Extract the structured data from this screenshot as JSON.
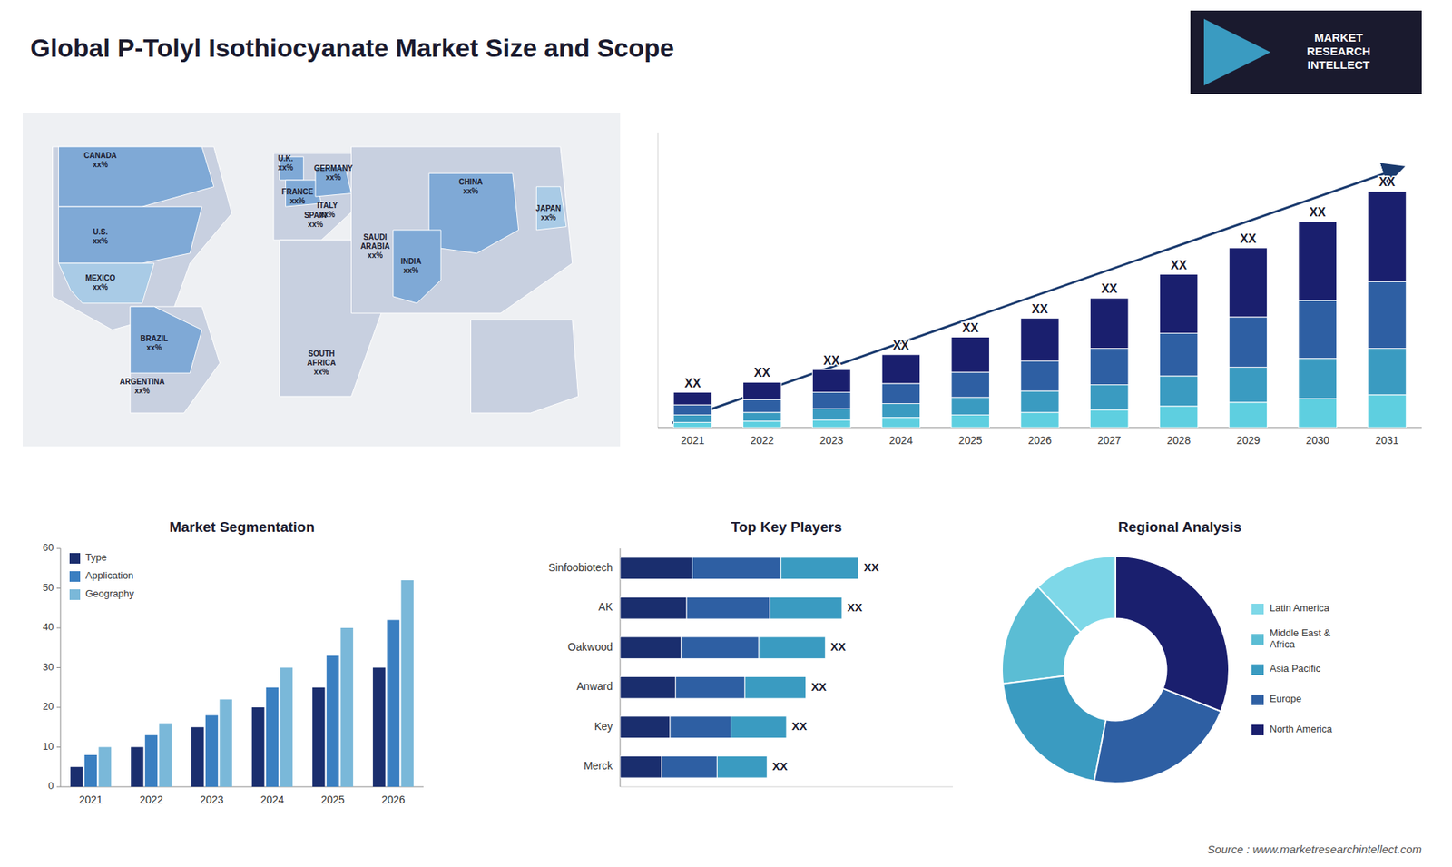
{
  "title": "Global P-Tolyl Isothiocyanate Market Size and Scope",
  "annotations": [
    "Source : www.marketresearchintellect.com",
    "MARKET\nRESEARCH\nINTELLECT"
  ],
  "chart_data": [
    {
      "type": "map",
      "annotations": [
        "CANADA\nxx%",
        "U.S.\nxx%",
        "MEXICO\nxx%",
        "BRAZIL\nxx%",
        "ARGENTINA\nxx%",
        "U.K.\nxx%",
        "FRANCE\nxx%",
        "SPAIN\nxx%",
        "GERMANY\nxx%",
        "ITALY\nxx%",
        "SAUDI\nARABIA\nxx%",
        "SOUTH\nAFRICA\nxx%",
        "CHINA\nxx%",
        "INDIA\nxx%",
        "JAPAN\nxx%"
      ]
    },
    {
      "type": "bar",
      "stacked": true,
      "categories": [
        "2021",
        "2022",
        "2023",
        "2024",
        "2025",
        "2026",
        "2027",
        "2028",
        "2029",
        "2030",
        "2031"
      ],
      "series": [
        {
          "color": "#5ecfe0",
          "values": [
            0.4,
            0.5,
            0.6,
            0.8,
            1.0,
            1.2,
            1.4,
            1.7,
            2.0,
            2.3,
            2.6
          ]
        },
        {
          "color": "#3a9bc1",
          "values": [
            0.6,
            0.7,
            0.9,
            1.1,
            1.4,
            1.7,
            2.0,
            2.4,
            2.8,
            3.2,
            3.7
          ]
        },
        {
          "color": "#2e5fa3",
          "values": [
            0.8,
            1.0,
            1.3,
            1.6,
            2.0,
            2.4,
            2.9,
            3.4,
            4.0,
            4.6,
            5.3
          ]
        },
        {
          "color": "#1a1f6e",
          "values": [
            1.0,
            1.4,
            1.8,
            2.3,
            2.8,
            3.4,
            4.0,
            4.7,
            5.5,
            6.3,
            7.2
          ],
          "value_labels": [
            "XX",
            "XX",
            "XX",
            "XX",
            "XX",
            "XX",
            "XX",
            "XX",
            "XX",
            "XX",
            "XX"
          ]
        }
      ],
      "ylim": [
        0,
        23.5
      ],
      "tick_labels": "x"
    },
    {
      "type": "bar",
      "title": "Market Segmentation",
      "categories": [
        "2021",
        "2022",
        "2023",
        "2024",
        "2025",
        "2026"
      ],
      "series": [
        {
          "name": "Type",
          "color": "#1a2e6e",
          "values": [
            5,
            10,
            15,
            20,
            25,
            30
          ]
        },
        {
          "name": "Application",
          "color": "#3a7fc1",
          "values": [
            8,
            13,
            18,
            25,
            33,
            42
          ]
        },
        {
          "name": "Geography",
          "color": "#7ab8d9",
          "values": [
            10,
            16,
            22,
            30,
            40,
            52
          ]
        }
      ],
      "ylim": [
        0,
        60
      ],
      "yticks": [
        0,
        10,
        20,
        30,
        40,
        50,
        60
      ],
      "legend": "upper left"
    },
    {
      "type": "bar",
      "orientation": "horizontal",
      "stacked": true,
      "title": "Top Key Players",
      "categories": [
        "Merck",
        "Key",
        "Anward",
        "Oakwood",
        "AK",
        "Sinfoobiotech"
      ],
      "series": [
        {
          "color": "#1a2e6e",
          "values": [
            1.5,
            1.8,
            2.0,
            2.2,
            2.4,
            2.6
          ]
        },
        {
          "color": "#2e5fa3",
          "values": [
            2.0,
            2.2,
            2.5,
            2.8,
            3.0,
            3.2
          ]
        },
        {
          "color": "#3a9bc1",
          "values": [
            1.8,
            2.0,
            2.2,
            2.4,
            2.6,
            2.8
          ],
          "value_labels": [
            "XX",
            "XX",
            "XX",
            "XX",
            "XX",
            "XX"
          ]
        }
      ],
      "xlim": [
        0,
        12
      ],
      "tick_labels": "y"
    },
    {
      "type": "pie",
      "title": "Regional Analysis",
      "categories": [
        "Latin America",
        "Middle East &\nAfrica",
        "Asia Pacific",
        "Europe",
        "North America"
      ],
      "values": [
        12,
        15,
        20,
        22,
        31
      ],
      "colors": [
        "#7ed8e8",
        "#5bbdd4",
        "#3a9bc1",
        "#2e5fa3",
        "#1a1f6e"
      ],
      "legend": "right"
    }
  ]
}
